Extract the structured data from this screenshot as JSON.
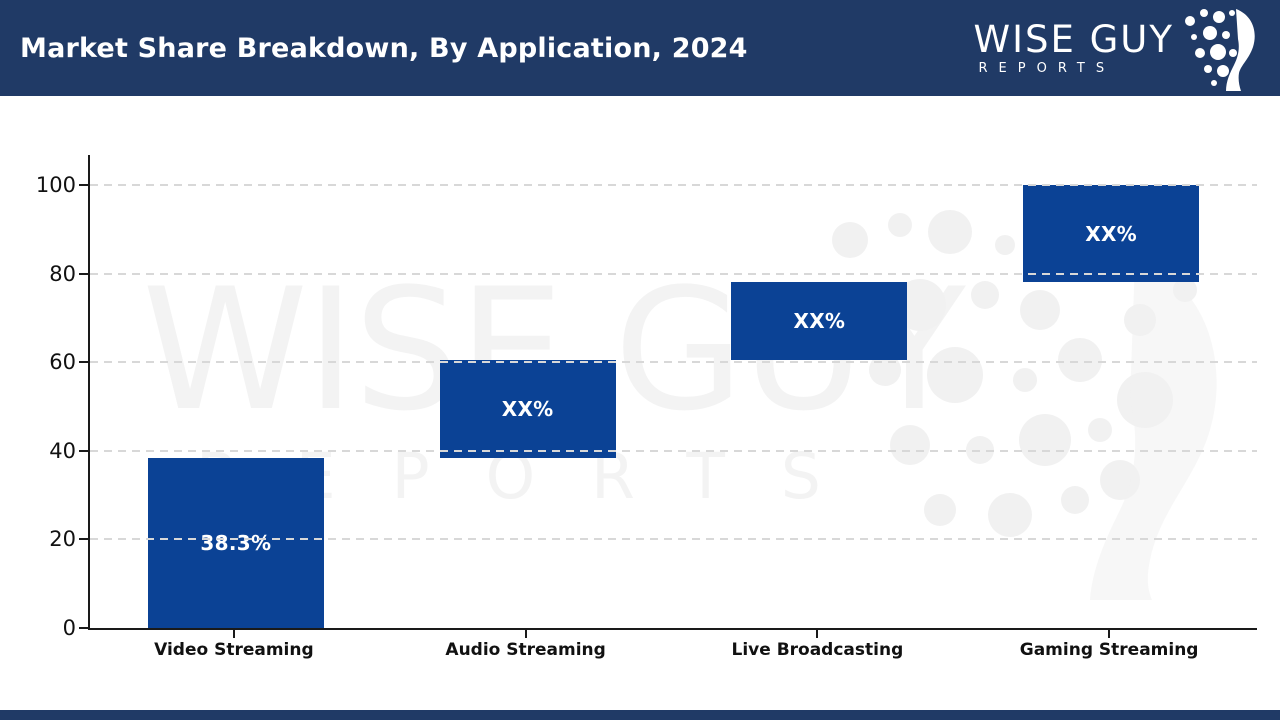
{
  "header": {
    "title": "Market Share Breakdown, By Application, 2024",
    "logo": {
      "line1": "WISE GUY",
      "line2": "REPORTS"
    }
  },
  "watermark": {
    "line1": "WISE GUY",
    "line2": "REPORTS"
  },
  "colors": {
    "header_navy": "#203a66",
    "bar_blue": "#0b4295",
    "gridline_gray": "#d8d8d8",
    "watermark_gray": "#f3f3f3"
  },
  "chart_data": {
    "type": "bar",
    "subtype": "waterfall",
    "title": "Market Share Breakdown, By Application, 2024",
    "categories": [
      "Video Streaming",
      "Audio Streaming",
      "Live Broadcasting",
      "Gaming Streaming"
    ],
    "series": [
      {
        "name": "Market Share",
        "segments": [
          {
            "start": 0,
            "end": 38.3
          },
          {
            "start": 38.3,
            "end": 60.4
          },
          {
            "start": 60.4,
            "end": 78.1
          },
          {
            "start": 78.1,
            "end": 100
          }
        ]
      }
    ],
    "bar_labels": [
      "38.3%",
      "XX%",
      "XX%",
      "XX%"
    ],
    "xlabel": "",
    "ylabel": "",
    "ylim": [
      0,
      100
    ],
    "yticks": [
      0,
      20,
      40,
      60,
      80,
      100
    ],
    "grid": "horizontal-dashed",
    "legend": "none",
    "bar_color": "#0b4295"
  }
}
